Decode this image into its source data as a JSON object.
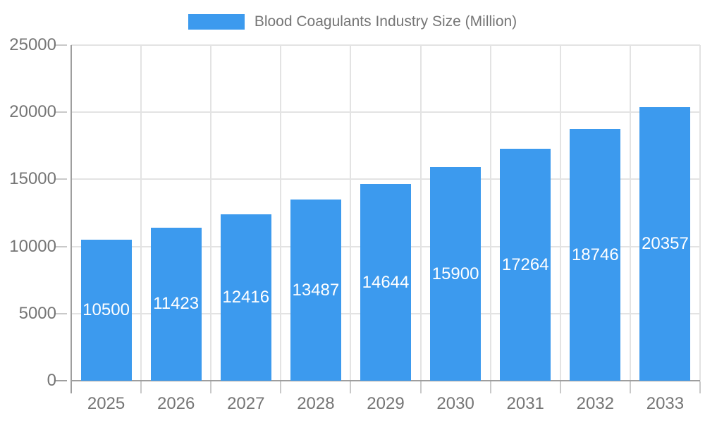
{
  "legend": {
    "label": "Blood Coagulants Industry Size (Million)"
  },
  "colors": {
    "bar": "#3C9AEE",
    "grid": "#E3E3E3",
    "tick": "#C9C9C9",
    "axis": "#9E9E9E",
    "text": "#757575",
    "value_label": "#FFFFFF",
    "background": "#FFFFFF"
  },
  "chart_data": {
    "type": "bar",
    "title": "Blood Coagulants Industry Size (Million)",
    "categories": [
      "2025",
      "2026",
      "2027",
      "2028",
      "2029",
      "2030",
      "2031",
      "2032",
      "2033"
    ],
    "values": [
      10500,
      11423,
      12416,
      13487,
      14644,
      15900,
      17264,
      18746,
      20357
    ],
    "xlabel": "",
    "ylabel": "",
    "ylim": [
      0,
      25000
    ],
    "yticks": [
      0,
      5000,
      10000,
      15000,
      20000,
      25000
    ],
    "grid": true,
    "legend_position": "top",
    "value_label_position": "center-inside"
  }
}
